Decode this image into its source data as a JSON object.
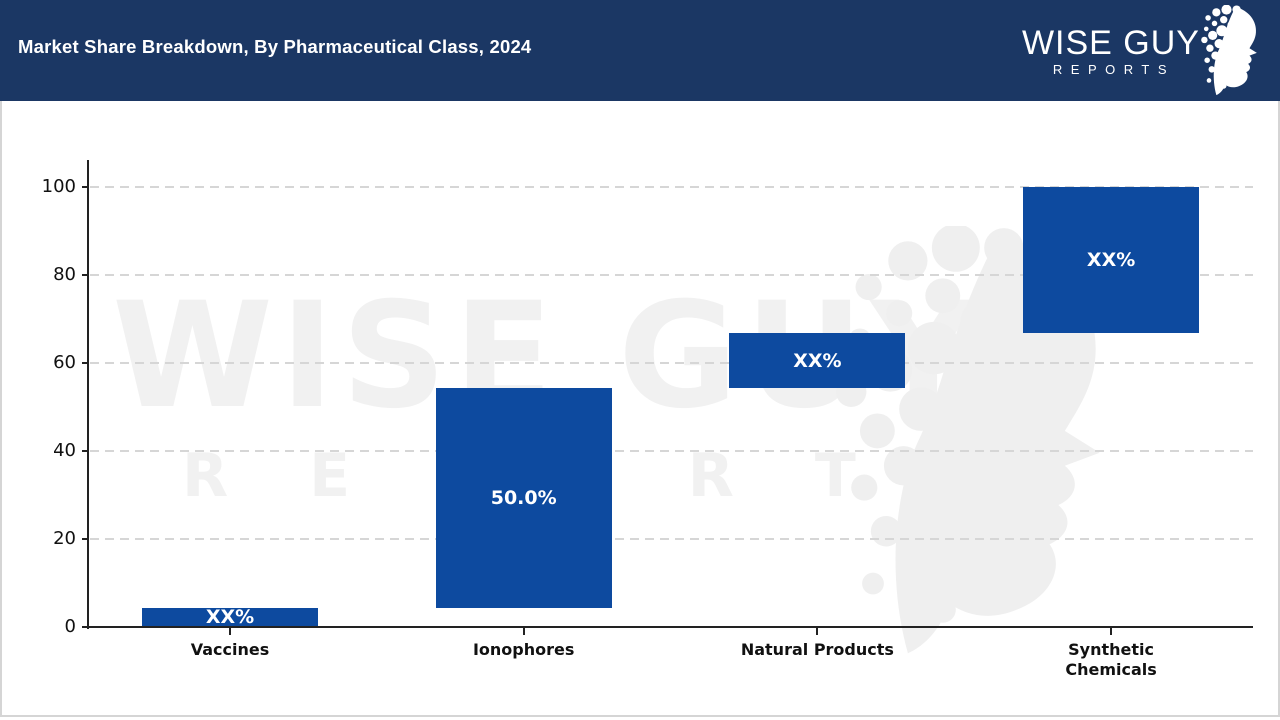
{
  "header": {
    "title": "Market Share Breakdown, By Pharmaceutical Class, 2024",
    "logo": {
      "line1": "WISE GUY",
      "line2": "REPORTS"
    }
  },
  "watermark": {
    "line1": "WISE GUY",
    "line2": "R E P O R T S"
  },
  "chart_data": {
    "type": "bar",
    "variant": "waterfall",
    "title": "Market Share Breakdown, By Pharmaceutical Class, 2024",
    "categories": [
      "Vaccines",
      "Ionophores",
      "Natural Products",
      "Synthetic\nChemicals"
    ],
    "segments": [
      {
        "category": "Vaccines",
        "start": 0,
        "end": 4.2,
        "label": "XX%"
      },
      {
        "category": "Ionophores",
        "start": 4.2,
        "end": 54.2,
        "label": "50.0%"
      },
      {
        "category": "Natural Products",
        "start": 54.2,
        "end": 66.7,
        "label": "XX%"
      },
      {
        "category": "Synthetic Chemicals",
        "start": 66.7,
        "end": 100,
        "label": "XX%"
      }
    ],
    "bar_labels": [
      "XX%",
      "50.0%",
      "XX%",
      "XX%"
    ],
    "yticks": [
      0,
      20,
      40,
      60,
      80,
      100
    ],
    "ylim": [
      0,
      105
    ],
    "xlabel": "",
    "ylabel": "",
    "grid": "horizontal-dashed",
    "legend_position": "none"
  },
  "colors": {
    "header_bg": "#1b3764",
    "bar": "#0d4a9f",
    "bar_label": "#ffffff",
    "axis": "#222222",
    "grid": "#d6d6d6",
    "watermark": "#f1f1f1",
    "frame_border": "#d5d5d5"
  }
}
